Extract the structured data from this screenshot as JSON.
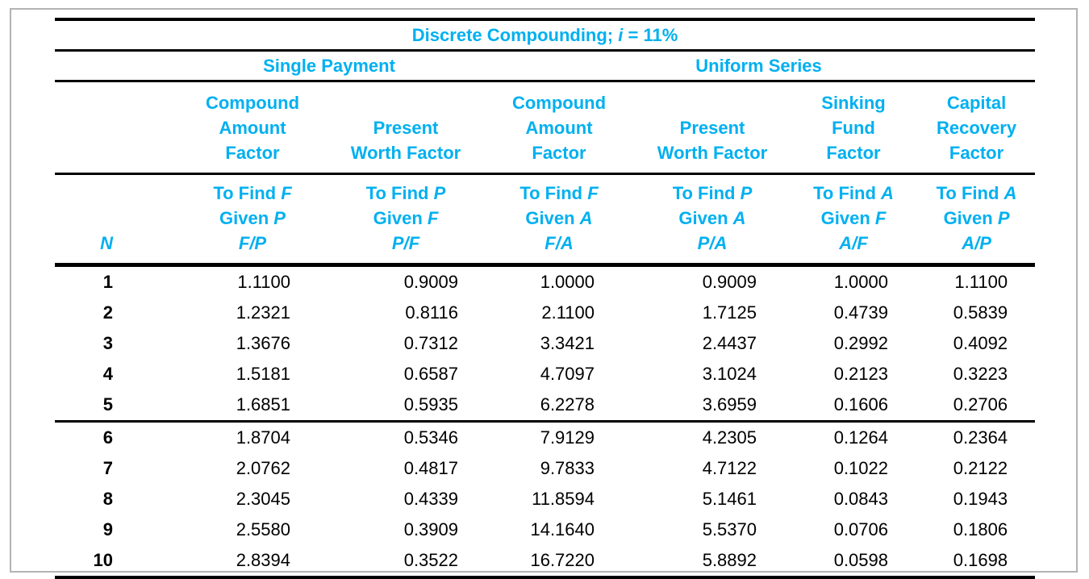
{
  "frame": {
    "border_color": "#b3b3b3"
  },
  "table": {
    "accent_color": "#00B0F0",
    "title_prefix": "Discrete Compounding; ",
    "title_var": "i",
    "title_suffix": " = 11%",
    "group_headers": [
      "Single Payment",
      "Uniform Series"
    ],
    "n_header": "N",
    "factor_headers": [
      {
        "lines": [
          "Compound",
          "Amount",
          "Factor"
        ]
      },
      {
        "lines": [
          "Present",
          "Worth Factor"
        ]
      },
      {
        "lines": [
          "Compound",
          "Amount",
          "Factor"
        ]
      },
      {
        "lines": [
          "Present",
          "Worth Factor"
        ]
      },
      {
        "lines": [
          "Sinking",
          "Fund",
          "Factor"
        ]
      },
      {
        "lines": [
          "Capital",
          "Recovery",
          "Factor"
        ]
      }
    ],
    "tofind_headers": [
      {
        "find_prefix": "To Find ",
        "find_var": "F",
        "given_prefix": "Given ",
        "given_var": "P",
        "ratio": "F/P"
      },
      {
        "find_prefix": "To Find ",
        "find_var": "P",
        "given_prefix": "Given ",
        "given_var": "F",
        "ratio": "P/F"
      },
      {
        "find_prefix": "To Find ",
        "find_var": "F",
        "given_prefix": "Given ",
        "given_var": "A",
        "ratio": "F/A"
      },
      {
        "find_prefix": "To Find ",
        "find_var": "P",
        "given_prefix": "Given ",
        "given_var": "A",
        "ratio": "P/A"
      },
      {
        "find_prefix": "To Find ",
        "find_var": "A",
        "given_prefix": "Given ",
        "given_var": "F",
        "ratio": "A/F"
      },
      {
        "find_prefix": "To Find ",
        "find_var": "A",
        "given_prefix": "Given ",
        "given_var": "P",
        "ratio": "A/P"
      }
    ],
    "columns": [
      "N",
      "F/P",
      "P/F",
      "F/A",
      "P/A",
      "A/F",
      "A/P"
    ],
    "rows": [
      [
        "1",
        "1.1100",
        "0.9009",
        "1.0000",
        "0.9009",
        "1.0000",
        "1.1100"
      ],
      [
        "2",
        "1.2321",
        "0.8116",
        "2.1100",
        "1.7125",
        "0.4739",
        "0.5839"
      ],
      [
        "3",
        "1.3676",
        "0.7312",
        "3.3421",
        "2.4437",
        "0.2992",
        "0.4092"
      ],
      [
        "4",
        "1.5181",
        "0.6587",
        "4.7097",
        "3.1024",
        "0.2123",
        "0.3223"
      ],
      [
        "5",
        "1.6851",
        "0.5935",
        "6.2278",
        "3.6959",
        "0.1606",
        "0.2706"
      ],
      [
        "6",
        "1.8704",
        "0.5346",
        "7.9129",
        "4.2305",
        "0.1264",
        "0.2364"
      ],
      [
        "7",
        "2.0762",
        "0.4817",
        "9.7833",
        "4.7122",
        "0.1022",
        "0.2122"
      ],
      [
        "8",
        "2.3045",
        "0.4339",
        "11.8594",
        "5.1461",
        "0.0843",
        "0.1943"
      ],
      [
        "9",
        "2.5580",
        "0.3909",
        "14.1640",
        "5.5370",
        "0.0706",
        "0.1806"
      ],
      [
        "10",
        "2.8394",
        "0.3522",
        "16.7220",
        "5.8892",
        "0.0598",
        "0.1698"
      ]
    ]
  }
}
